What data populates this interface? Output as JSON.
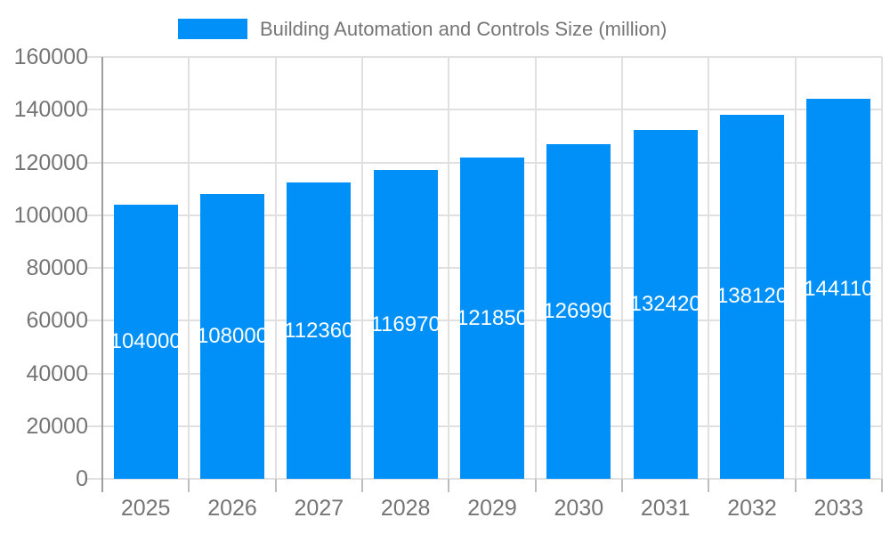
{
  "legend": {
    "label": "Building Automation and Controls Size (million)"
  },
  "chart_data": {
    "type": "bar",
    "title": "",
    "xlabel": "",
    "ylabel": "",
    "categories": [
      "2025",
      "2026",
      "2027",
      "2028",
      "2029",
      "2030",
      "2031",
      "2032",
      "2033"
    ],
    "series": [
      {
        "name": "Building Automation and Controls Size (million)",
        "values": [
          104000,
          108000,
          112360,
          116970,
          121850,
          126990,
          132420,
          138120,
          144110
        ]
      }
    ],
    "bar_value_labels": [
      "104000",
      "108000",
      "112360",
      "116970",
      "121850",
      "126990",
      "132420",
      "138120",
      "144110"
    ],
    "ylim": [
      0,
      160000
    ],
    "ytick_interval": 20000,
    "ytick_labels": [
      "0",
      "20000",
      "40000",
      "60000",
      "80000",
      "100000",
      "120000",
      "140000",
      "160000"
    ],
    "grid": true,
    "legend_position": "top",
    "colors": {
      "bar": "#0190f8",
      "bar_label_text": "#ffffff",
      "axis_text": "#757575",
      "gridline": "#e0e0e0",
      "axis_line": "#9e9e9e",
      "axis_tick": "#bdbdbd",
      "background": "#ffffff"
    }
  }
}
